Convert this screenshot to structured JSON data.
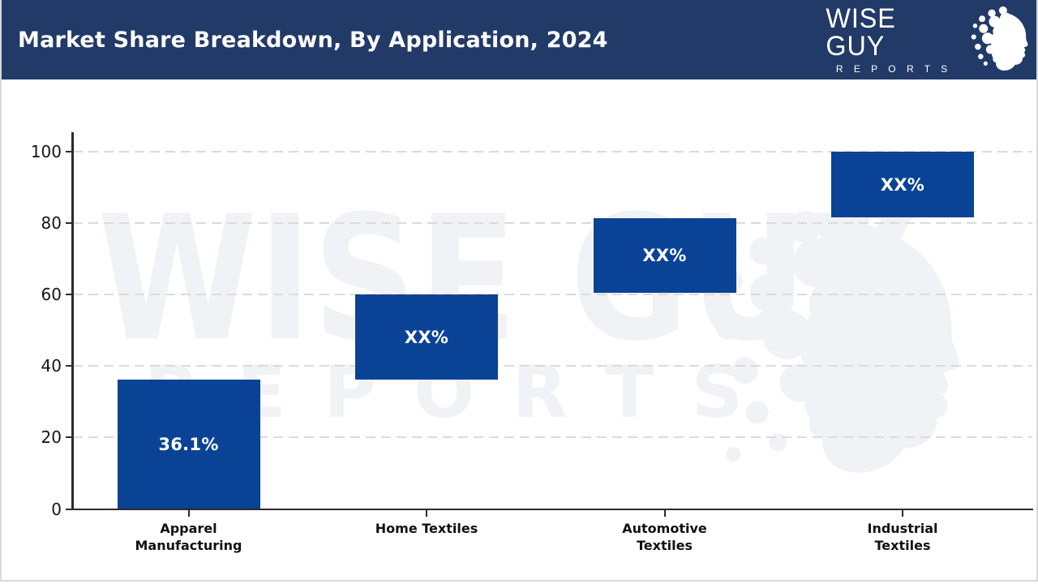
{
  "header": {
    "title": "Market Share Breakdown, By Application, 2024",
    "logo": {
      "line1": "WISE GUY",
      "line2": "R E P O R T S"
    }
  },
  "watermark": {
    "line1": "WISE GUY",
    "line2": "R E P O R T S"
  },
  "chart_data": {
    "type": "bar",
    "subtype": "waterfall",
    "title": "Market Share Breakdown, By Application, 2024",
    "categories": [
      "Apparel Manufacturing",
      "Home Textiles",
      "Automotive Textiles",
      "Industrial Textiles"
    ],
    "category_lines": [
      [
        "Apparel",
        "Manufacturing"
      ],
      [
        "Home Textiles"
      ],
      [
        "Automotive",
        "Textiles"
      ],
      [
        "Industrial",
        "Textiles"
      ]
    ],
    "series": [
      {
        "name": "Market Share (%)",
        "segments": [
          {
            "category": "Apparel Manufacturing",
            "start": 0,
            "end": 36.1,
            "label": "36.1%"
          },
          {
            "category": "Home Textiles",
            "start": 36.1,
            "end": 60.1,
            "label": "XX%"
          },
          {
            "category": "Automotive Textiles",
            "start": 60.4,
            "end": 81.3,
            "label": "XX%"
          },
          {
            "category": "Industrial Textiles",
            "start": 81.5,
            "end": 100,
            "label": "XX%"
          }
        ]
      }
    ],
    "xlabel": "",
    "ylabel": "",
    "ylim": [
      0,
      100
    ],
    "yticks": [
      0,
      20,
      40,
      60,
      80,
      100
    ],
    "grid": "horizontal-dashed",
    "legend": "none",
    "colors": {
      "bar": "#0A4396",
      "bar_label": "#FFFFFF",
      "grid": "#DBDBDB",
      "axis": "#2B2B2B",
      "header_bg": "#223A67",
      "watermark": "#F1F2F5"
    }
  }
}
